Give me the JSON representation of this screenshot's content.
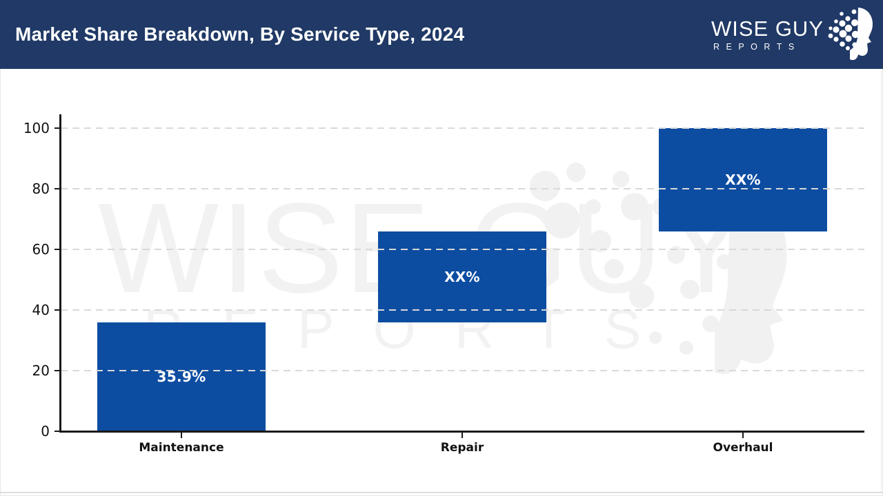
{
  "header": {
    "title": "Market Share Breakdown, By Service Type, 2024",
    "bg_color": "#203966",
    "logo": {
      "line1": "WISE GUY",
      "line2": "REPORTS",
      "face_icon": "dotted-head-profile",
      "color": "#ffffff"
    }
  },
  "watermark": {
    "line1": "WISE GUY",
    "line2": "REPORTS",
    "color": "#f2f2f2"
  },
  "chart_data": {
    "type": "bar",
    "subtype": "waterfall",
    "title": "",
    "xlabel": "",
    "ylabel": "",
    "categories": [
      "Maintenance",
      "Repair",
      "Overhaul"
    ],
    "bars": [
      {
        "category": "Maintenance",
        "start": 0,
        "end": 35.9,
        "label": "35.9%"
      },
      {
        "category": "Repair",
        "start": 35.9,
        "end": 65.9,
        "label": "XX%"
      },
      {
        "category": "Overhaul",
        "start": 65.9,
        "end": 100,
        "label": "XX%"
      }
    ],
    "yticks": [
      0,
      20,
      40,
      60,
      80,
      100
    ],
    "ylim": [
      0,
      104.5
    ],
    "grid": "dashed-horizontal",
    "legend": "none",
    "bar_color": "#0d4da1",
    "bar_label_color": "#ffffff",
    "axis_color": "#1a1a1a",
    "gridline_color": "#d9d9d9"
  }
}
